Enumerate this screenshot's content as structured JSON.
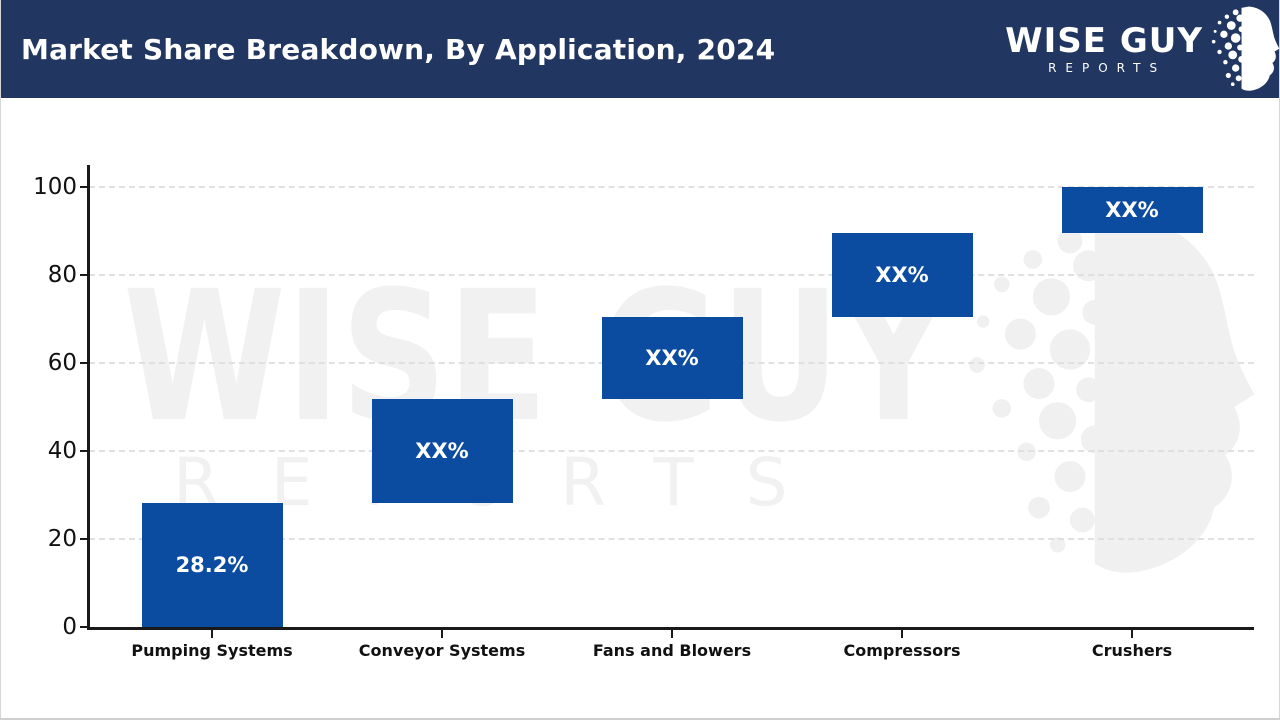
{
  "header": {
    "title": "Market Share Breakdown, By Application, 2024",
    "logo": {
      "line1": "WISE GUY",
      "line2": "REPORTS"
    }
  },
  "watermark": {
    "line1": "WISE GUY",
    "line2": "REPORTS"
  },
  "colors": {
    "header_bg": "#213660",
    "bar": "#0b4ca1",
    "bar_label": "#ffffff",
    "gridline": "#e0e0e0",
    "axis": "#1a1a1a",
    "tick_text": "#111111",
    "watermark": "#f1f1f1"
  },
  "chart_data": {
    "type": "bar",
    "subtype": "waterfall",
    "title": "Market Share Breakdown, By Application, 2024",
    "categories": [
      "Pumping Systems",
      "Conveyor Systems",
      "Fans and Blowers",
      "Compressors",
      "Crushers"
    ],
    "series": [
      {
        "name": "Market share (%)",
        "segments": [
          {
            "category": "Pumping Systems",
            "start": 0,
            "end": 28.2,
            "label": "28.2%"
          },
          {
            "category": "Conveyor Systems",
            "start": 28.2,
            "end": 51.8,
            "label": "XX%"
          },
          {
            "category": "Fans and Blowers",
            "start": 51.8,
            "end": 70.5,
            "label": "XX%"
          },
          {
            "category": "Compressors",
            "start": 70.5,
            "end": 89.5,
            "label": "XX%"
          },
          {
            "category": "Crushers",
            "start": 89.5,
            "end": 100,
            "label": "XX%"
          }
        ]
      }
    ],
    "xlabel": "",
    "ylabel": "",
    "ylim": [
      0,
      100
    ],
    "yticks": [
      0,
      20,
      40,
      60,
      80,
      100
    ],
    "grid": "horizontal-dashed",
    "legend": "none"
  }
}
